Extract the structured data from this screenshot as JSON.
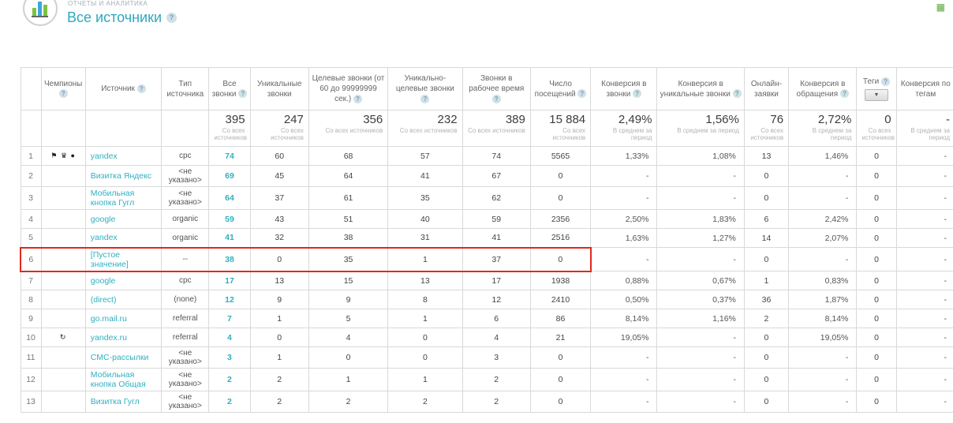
{
  "header": {
    "breadcrumb": "Отчеты и аналитика",
    "title": "Все источники"
  },
  "icons": {
    "help": "?",
    "caret": "▼",
    "settings": "▦"
  },
  "table": {
    "columns": [
      {
        "key": "num",
        "label": "",
        "width": 26,
        "help": false
      },
      {
        "key": "champions",
        "label": "Чемпионы",
        "width": 56,
        "help": true
      },
      {
        "key": "source",
        "label": "Источник",
        "width": 96,
        "help": true
      },
      {
        "key": "type",
        "label": "Тип источника",
        "width": 60,
        "help": false
      },
      {
        "key": "all_calls",
        "label": "Все звонки",
        "width": 52,
        "help": true
      },
      {
        "key": "unique_calls",
        "label": "Уникальные звонки",
        "width": 74,
        "help": false
      },
      {
        "key": "target_calls",
        "label": "Целевые звонки (от 60 до 99999999 сек.)",
        "width": 100,
        "help": true
      },
      {
        "key": "unique_target_calls",
        "label": "Уникально-целевые звонки",
        "width": 94,
        "help": true
      },
      {
        "key": "work_calls",
        "label": "Звонки в рабочее время",
        "width": 86,
        "help": true
      },
      {
        "key": "visits",
        "label": "Число посещений",
        "width": 76,
        "help": true
      },
      {
        "key": "conv_calls",
        "label": "Конверсия в звонки",
        "width": 84,
        "help": true
      },
      {
        "key": "conv_unique",
        "label": "Конверсия в уникальные звонки",
        "width": 110,
        "help": true
      },
      {
        "key": "online",
        "label": "Онлайн-заявки",
        "width": 56,
        "help": false
      },
      {
        "key": "conv_appeals",
        "label": "Конверсия в обращения",
        "width": 86,
        "help": true
      },
      {
        "key": "tags",
        "label": "Теги",
        "width": 50,
        "help": true,
        "dropdown": true
      },
      {
        "key": "conv_tags",
        "label": "Конверсия по тегам",
        "width": 74,
        "help": false
      }
    ],
    "summary": {
      "all_calls": {
        "value": "395",
        "note": "Со всех источников"
      },
      "unique_calls": {
        "value": "247",
        "note": "Со всех источников"
      },
      "target_calls": {
        "value": "356",
        "note": "Со всех источников"
      },
      "unique_target_calls": {
        "value": "232",
        "note": "Со всех источников"
      },
      "work_calls": {
        "value": "389",
        "note": "Со всех источников"
      },
      "visits": {
        "value": "15 884",
        "note": "Со всех источников"
      },
      "conv_calls": {
        "value": "2,49%",
        "note": "В среднем за период"
      },
      "conv_unique": {
        "value": "1,56%",
        "note": "В среднем за период"
      },
      "online": {
        "value": "76",
        "note": "Со всех источников"
      },
      "conv_appeals": {
        "value": "2,72%",
        "note": "В среднем за период"
      },
      "tags": {
        "value": "0",
        "note": "Со всех источников"
      },
      "conv_tags": {
        "value": "-",
        "note": "В среднем за период"
      }
    },
    "rows": [
      {
        "num": "1",
        "champions": "⚑ ♛ ●",
        "source": "yandex",
        "type": "cpc",
        "all_calls": "74",
        "unique_calls": "60",
        "target_calls": "68",
        "unique_target_calls": "57",
        "work_calls": "74",
        "visits": "5565",
        "conv_calls": "1,33%",
        "conv_unique": "1,08%",
        "online": "13",
        "conv_appeals": "1,46%",
        "tags": "0",
        "conv_tags": "-"
      },
      {
        "num": "2",
        "champions": "",
        "source": "Визитка Яндекс",
        "type": "<не указано>",
        "all_calls": "69",
        "unique_calls": "45",
        "target_calls": "64",
        "unique_target_calls": "41",
        "work_calls": "67",
        "visits": "0",
        "conv_calls": "-",
        "conv_unique": "-",
        "online": "0",
        "conv_appeals": "-",
        "tags": "0",
        "conv_tags": "-"
      },
      {
        "num": "3",
        "champions": "",
        "source": "Мобильная кнопка Гугл",
        "type": "<не указано>",
        "all_calls": "64",
        "unique_calls": "37",
        "target_calls": "61",
        "unique_target_calls": "35",
        "work_calls": "62",
        "visits": "0",
        "conv_calls": "-",
        "conv_unique": "-",
        "online": "0",
        "conv_appeals": "-",
        "tags": "0",
        "conv_tags": "-"
      },
      {
        "num": "4",
        "champions": "",
        "source": "google",
        "type": "organic",
        "all_calls": "59",
        "unique_calls": "43",
        "target_calls": "51",
        "unique_target_calls": "40",
        "work_calls": "59",
        "visits": "2356",
        "conv_calls": "2,50%",
        "conv_unique": "1,83%",
        "online": "6",
        "conv_appeals": "2,42%",
        "tags": "0",
        "conv_tags": "-"
      },
      {
        "num": "5",
        "champions": "",
        "source": "yandex",
        "type": "organic",
        "all_calls": "41",
        "unique_calls": "32",
        "target_calls": "38",
        "unique_target_calls": "31",
        "work_calls": "41",
        "visits": "2516",
        "conv_calls": "1,63%",
        "conv_unique": "1,27%",
        "online": "14",
        "conv_appeals": "2,07%",
        "tags": "0",
        "conv_tags": "-"
      },
      {
        "num": "6",
        "champions": "",
        "source": "[Пустое значение]",
        "type": "--",
        "all_calls": "38",
        "unique_calls": "0",
        "target_calls": "35",
        "unique_target_calls": "1",
        "work_calls": "37",
        "visits": "0",
        "conv_calls": "-",
        "conv_unique": "-",
        "online": "0",
        "conv_appeals": "-",
        "tags": "0",
        "conv_tags": "-",
        "highlighted": true
      },
      {
        "num": "7",
        "champions": "",
        "source": "google",
        "type": "cpc",
        "all_calls": "17",
        "unique_calls": "13",
        "target_calls": "15",
        "unique_target_calls": "13",
        "work_calls": "17",
        "visits": "1938",
        "conv_calls": "0,88%",
        "conv_unique": "0,67%",
        "online": "1",
        "conv_appeals": "0,83%",
        "tags": "0",
        "conv_tags": "-"
      },
      {
        "num": "8",
        "champions": "",
        "source": "(direct)",
        "type": "(none)",
        "all_calls": "12",
        "unique_calls": "9",
        "target_calls": "9",
        "unique_target_calls": "8",
        "work_calls": "12",
        "visits": "2410",
        "conv_calls": "0,50%",
        "conv_unique": "0,37%",
        "online": "36",
        "conv_appeals": "1,87%",
        "tags": "0",
        "conv_tags": "-"
      },
      {
        "num": "9",
        "champions": "",
        "source": "go.mail.ru",
        "type": "referral",
        "all_calls": "7",
        "unique_calls": "1",
        "target_calls": "5",
        "unique_target_calls": "1",
        "work_calls": "6",
        "visits": "86",
        "conv_calls": "8,14%",
        "conv_unique": "1,16%",
        "online": "2",
        "conv_appeals": "8,14%",
        "tags": "0",
        "conv_tags": "-"
      },
      {
        "num": "10",
        "champions": "↻",
        "source": "yandex.ru",
        "type": "referral",
        "all_calls": "4",
        "unique_calls": "0",
        "target_calls": "4",
        "unique_target_calls": "0",
        "work_calls": "4",
        "visits": "21",
        "conv_calls": "19,05%",
        "conv_unique": "-",
        "online": "0",
        "conv_appeals": "19,05%",
        "tags": "0",
        "conv_tags": "-"
      },
      {
        "num": "11",
        "champions": "",
        "source": "СМС-рассылки",
        "type": "<не указано>",
        "all_calls": "3",
        "unique_calls": "1",
        "target_calls": "0",
        "unique_target_calls": "0",
        "work_calls": "3",
        "visits": "0",
        "conv_calls": "-",
        "conv_unique": "-",
        "online": "0",
        "conv_appeals": "-",
        "tags": "0",
        "conv_tags": "-"
      },
      {
        "num": "12",
        "champions": "",
        "source": "Мобильная кнопка Общая",
        "type": "<не указано>",
        "all_calls": "2",
        "unique_calls": "2",
        "target_calls": "1",
        "unique_target_calls": "1",
        "work_calls": "2",
        "visits": "0",
        "conv_calls": "-",
        "conv_unique": "-",
        "online": "0",
        "conv_appeals": "-",
        "tags": "0",
        "conv_tags": "-"
      },
      {
        "num": "13",
        "champions": "",
        "source": "Визитка Гугл",
        "type": "<не указано>",
        "all_calls": "2",
        "unique_calls": "2",
        "target_calls": "2",
        "unique_target_calls": "2",
        "work_calls": "2",
        "visits": "0",
        "conv_calls": "-",
        "conv_unique": "-",
        "online": "0",
        "conv_appeals": "-",
        "tags": "0",
        "conv_tags": "-"
      }
    ]
  }
}
